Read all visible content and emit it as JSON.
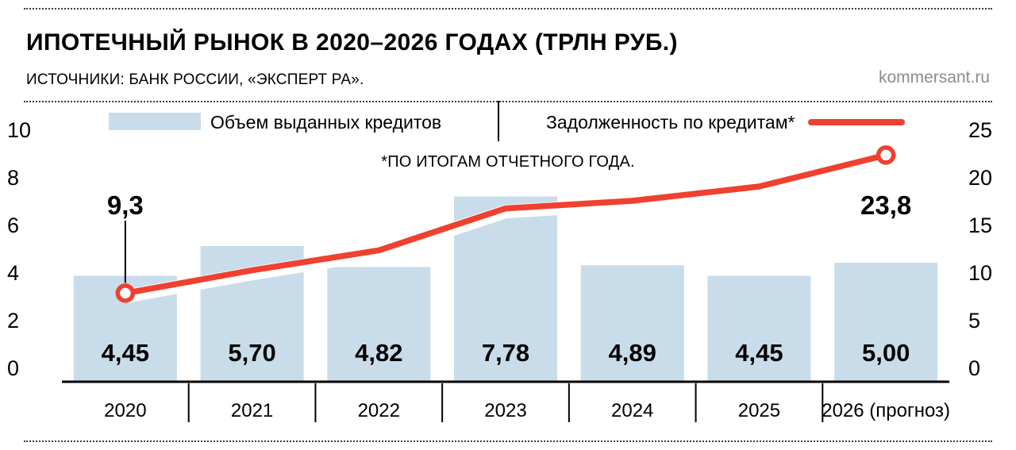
{
  "header": {
    "title": "ИПОТЕЧНЫЙ РЫНОК В 2020–2026 ГОДАХ (ТРЛН РУБ.)",
    "sources": "ИСТОЧНИКИ: БАНК РОССИИ, «ЭКСПЕРТ РА».",
    "site": "kommersant.ru"
  },
  "legend": {
    "bar_label": "Объем выданных кредитов",
    "line_label": "Задолженность по кредитам*",
    "note": "*ПО ИТОГАМ ОТЧЕТНОГО ГОДА."
  },
  "colors": {
    "bar": "#c9dcea",
    "line": "#f0402f",
    "text": "#000000",
    "site_text": "#8c8c8c"
  },
  "chart_data": {
    "type": "bar",
    "title": "ИПОТЕЧНЫЙ РЫНОК В 2020–2026 ГОДАХ (ТРЛН РУБ.)",
    "note": "*ПО ИТОГАМ ОТЧЕТНОГО ГОДА.",
    "categories": [
      "2020",
      "2021",
      "2022",
      "2023",
      "2024",
      "2025",
      "2026 (прогноз)"
    ],
    "series": [
      {
        "name": "Объем выданных кредитов",
        "type": "bar",
        "axis": "left",
        "values": [
          4.45,
          5.7,
          4.82,
          7.78,
          4.89,
          4.45,
          5.0
        ],
        "value_labels": [
          "4,45",
          "5,70",
          "4,82",
          "7,78",
          "4,89",
          "4,45",
          "5,00"
        ]
      },
      {
        "name": "Задолженность по кредитам*",
        "type": "line",
        "axis": "right",
        "values": [
          9.3,
          11.7,
          13.8,
          18.2,
          19.0,
          20.5,
          23.8
        ],
        "labeled_points": [
          {
            "index": 0,
            "label": "9,3"
          },
          {
            "index": 6,
            "label": "23,8"
          }
        ]
      }
    ],
    "left_axis": {
      "range": [
        0,
        10
      ],
      "ticks": [
        0,
        2,
        4,
        6,
        8,
        10
      ]
    },
    "right_axis": {
      "range": [
        0,
        25
      ],
      "ticks": [
        0,
        5,
        10,
        15,
        20,
        25
      ]
    },
    "legend_position": "top",
    "grid": false
  }
}
